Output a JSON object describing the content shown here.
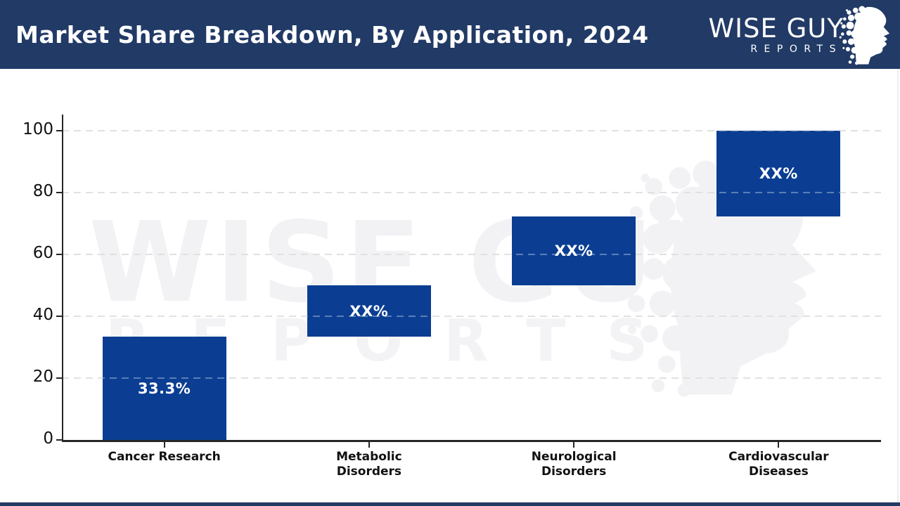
{
  "header": {
    "title": "Market Share Breakdown, By Application, 2024",
    "logo": {
      "wordmark": "WISE GUY",
      "subtext": "REPORTS"
    }
  },
  "watermark": {
    "wordmark": "WISE GUY",
    "subtext": "REPORTS"
  },
  "chart_data": {
    "type": "bar",
    "variant": "waterfall",
    "title": "Market Share Breakdown, By Application, 2024",
    "categories": [
      "Cancer Research",
      "Metabolic Disorders",
      "Neurological Disorders",
      "Cardiovascular Diseases"
    ],
    "segments": [
      {
        "category": "Cancer Research",
        "start": 0,
        "end": 33.3,
        "label": "33.3%"
      },
      {
        "category": "Metabolic Disorders",
        "start": 33.3,
        "end": 50,
        "label": "XX%"
      },
      {
        "category": "Neurological Disorders",
        "start": 50,
        "end": 72.2,
        "label": "XX%"
      },
      {
        "category": "Cardiovascular Diseases",
        "start": 72.2,
        "end": 100,
        "label": "XX%"
      }
    ],
    "xlabel": "",
    "ylabel": "",
    "yticks": [
      0,
      20,
      40,
      60,
      80,
      100
    ],
    "ylim": [
      0,
      105
    ],
    "grid": "dashed-horizontal",
    "legend": "none",
    "bar_color": "#0b3e92",
    "value_label_color": "#ffffff",
    "header_color": "#213a66"
  }
}
